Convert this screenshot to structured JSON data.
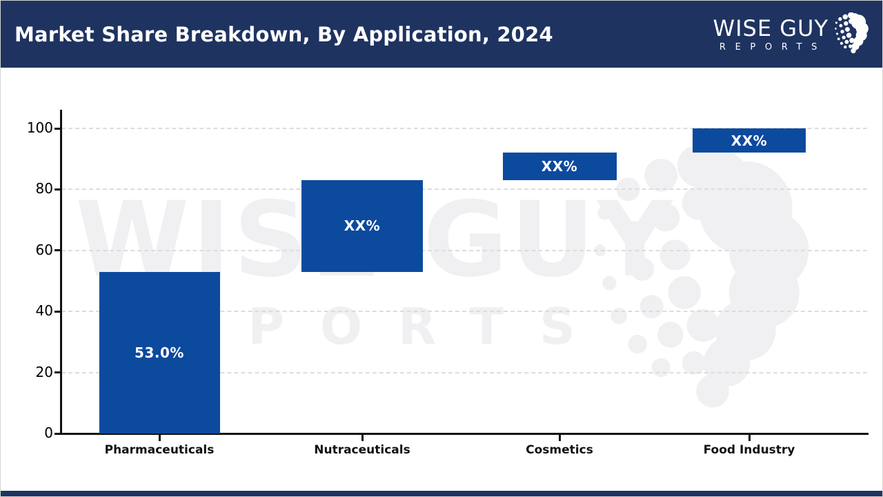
{
  "header": {
    "title": "Market Share Breakdown, By Application, 2024",
    "logo": {
      "line1": "WISE GUY",
      "line2": "REPORTS"
    }
  },
  "watermark": {
    "line1": "WISE GUY",
    "line2": "REPORTS"
  },
  "colors": {
    "header_bg": "#1e3360",
    "footer_bg": "#1e3360",
    "bar": "#0c4a9e",
    "bar_label": "#ffffff",
    "gridline": "#dcdcdc",
    "axis": "#111111",
    "watermark": "#f0f0f2"
  },
  "chart_data": {
    "type": "bar",
    "variant": "waterfall",
    "title": "Market Share Breakdown, By Application, 2024",
    "categories": [
      "Pharmaceuticals",
      "Nutraceuticals",
      "Cosmetics",
      "Food Industry"
    ],
    "bars": [
      {
        "category": "Pharmaceuticals",
        "start": 0,
        "end": 53,
        "span_pct": 53,
        "value_label": "53.0%"
      },
      {
        "category": "Nutraceuticals",
        "start": 53,
        "end": 83,
        "span_pct": 30,
        "value_label": "XX%"
      },
      {
        "category": "Cosmetics",
        "start": 83,
        "end": 92,
        "span_pct": 9,
        "value_label": "XX%"
      },
      {
        "category": "Food Industry",
        "start": 92,
        "end": 100,
        "span_pct": 8,
        "value_label": "XX%"
      }
    ],
    "xlabel": "",
    "ylabel": "",
    "yticks": [
      0,
      20,
      40,
      60,
      80,
      100
    ],
    "ylim": [
      0,
      105
    ],
    "grid": "horizontal-dashed",
    "legend": "none",
    "bar_color": "#0c4a9e",
    "value_label_color": "#ffffff"
  }
}
